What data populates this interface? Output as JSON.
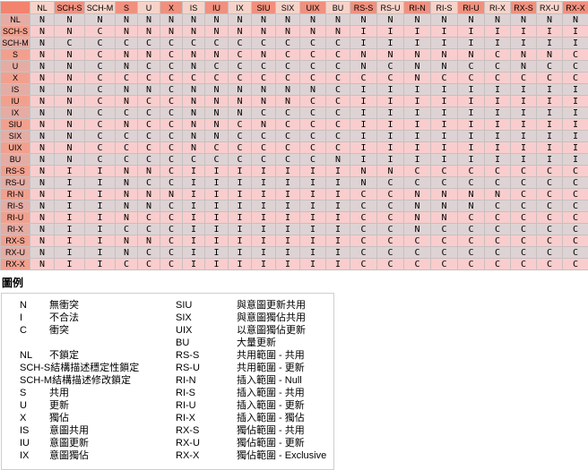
{
  "table": {
    "corner_label": "",
    "columns": [
      "NL",
      "SCH-S",
      "SCH-M",
      "S",
      "U",
      "X",
      "IS",
      "IU",
      "IX",
      "SIU",
      "SIX",
      "UIX",
      "BU",
      "RS-S",
      "RS-U",
      "RI-N",
      "RI-S",
      "RI-U",
      "RI-X",
      "RX-S",
      "RX-U",
      "RX-X"
    ],
    "rows": [
      {
        "label": "NL",
        "cells": [
          "N",
          "N",
          "N",
          "N",
          "N",
          "N",
          "N",
          "N",
          "N",
          "N",
          "N",
          "N",
          "N",
          "N",
          "N",
          "N",
          "N",
          "N",
          "N",
          "N",
          "N",
          "N"
        ]
      },
      {
        "label": "SCH-S",
        "cells": [
          "N",
          "N",
          "C",
          "N",
          "N",
          "N",
          "N",
          "N",
          "N",
          "N",
          "N",
          "N",
          "N",
          "I",
          "I",
          "I",
          "I",
          "I",
          "I",
          "I",
          "I",
          "I"
        ]
      },
      {
        "label": "SCH-M",
        "cells": [
          "N",
          "C",
          "C",
          "C",
          "C",
          "C",
          "C",
          "C",
          "C",
          "C",
          "C",
          "C",
          "C",
          "I",
          "I",
          "I",
          "I",
          "I",
          "I",
          "I",
          "I",
          "I"
        ]
      },
      {
        "label": "S",
        "cells": [
          "N",
          "N",
          "C",
          "N",
          "N",
          "C",
          "N",
          "N",
          "C",
          "N",
          "C",
          "C",
          "C",
          "N",
          "N",
          "N",
          "N",
          "N",
          "C",
          "N",
          "N",
          "C"
        ]
      },
      {
        "label": "U",
        "cells": [
          "N",
          "N",
          "C",
          "N",
          "C",
          "C",
          "N",
          "C",
          "C",
          "C",
          "C",
          "C",
          "C",
          "N",
          "C",
          "N",
          "N",
          "C",
          "C",
          "N",
          "C",
          "C"
        ]
      },
      {
        "label": "X",
        "cells": [
          "N",
          "N",
          "C",
          "C",
          "C",
          "C",
          "C",
          "C",
          "C",
          "C",
          "C",
          "C",
          "C",
          "C",
          "C",
          "N",
          "C",
          "C",
          "C",
          "C",
          "C",
          "C"
        ]
      },
      {
        "label": "IS",
        "cells": [
          "N",
          "N",
          "C",
          "N",
          "N",
          "C",
          "N",
          "N",
          "N",
          "N",
          "N",
          "N",
          "C",
          "I",
          "I",
          "I",
          "I",
          "I",
          "I",
          "I",
          "I",
          "I"
        ]
      },
      {
        "label": "IU",
        "cells": [
          "N",
          "N",
          "C",
          "N",
          "C",
          "C",
          "N",
          "N",
          "N",
          "N",
          "N",
          "C",
          "C",
          "I",
          "I",
          "I",
          "I",
          "I",
          "I",
          "I",
          "I",
          "I"
        ]
      },
      {
        "label": "IX",
        "cells": [
          "N",
          "N",
          "C",
          "C",
          "C",
          "C",
          "N",
          "N",
          "N",
          "C",
          "C",
          "C",
          "C",
          "I",
          "I",
          "I",
          "I",
          "I",
          "I",
          "I",
          "I",
          "I"
        ]
      },
      {
        "label": "SIU",
        "cells": [
          "N",
          "N",
          "C",
          "N",
          "C",
          "C",
          "N",
          "N",
          "C",
          "N",
          "C",
          "C",
          "C",
          "I",
          "I",
          "I",
          "I",
          "I",
          "I",
          "I",
          "I",
          "I"
        ]
      },
      {
        "label": "SIX",
        "cells": [
          "N",
          "N",
          "C",
          "C",
          "C",
          "C",
          "N",
          "N",
          "C",
          "C",
          "C",
          "C",
          "C",
          "I",
          "I",
          "I",
          "I",
          "I",
          "I",
          "I",
          "I",
          "I"
        ]
      },
      {
        "label": "UIX",
        "cells": [
          "N",
          "N",
          "C",
          "C",
          "C",
          "C",
          "N",
          "C",
          "C",
          "C",
          "C",
          "C",
          "C",
          "I",
          "I",
          "I",
          "I",
          "I",
          "I",
          "I",
          "I",
          "I"
        ]
      },
      {
        "label": "BU",
        "cells": [
          "N",
          "N",
          "C",
          "C",
          "C",
          "C",
          "C",
          "C",
          "C",
          "C",
          "C",
          "C",
          "N",
          "I",
          "I",
          "I",
          "I",
          "I",
          "I",
          "I",
          "I",
          "I"
        ]
      },
      {
        "label": "RS-S",
        "cells": [
          "N",
          "I",
          "I",
          "N",
          "N",
          "C",
          "I",
          "I",
          "I",
          "I",
          "I",
          "I",
          "I",
          "N",
          "N",
          "C",
          "C",
          "C",
          "C",
          "C",
          "C",
          "C"
        ]
      },
      {
        "label": "RS-U",
        "cells": [
          "N",
          "I",
          "I",
          "N",
          "C",
          "C",
          "I",
          "I",
          "I",
          "I",
          "I",
          "I",
          "I",
          "N",
          "C",
          "C",
          "C",
          "C",
          "C",
          "C",
          "C",
          "C"
        ]
      },
      {
        "label": "RI-N",
        "cells": [
          "N",
          "I",
          "I",
          "N",
          "N",
          "N",
          "I",
          "I",
          "I",
          "I",
          "I",
          "I",
          "I",
          "C",
          "C",
          "N",
          "N",
          "N",
          "N",
          "C",
          "C",
          "C"
        ]
      },
      {
        "label": "RI-S",
        "cells": [
          "N",
          "I",
          "I",
          "N",
          "N",
          "C",
          "I",
          "I",
          "I",
          "I",
          "I",
          "I",
          "I",
          "C",
          "C",
          "N",
          "N",
          "N",
          "C",
          "C",
          "C",
          "C"
        ]
      },
      {
        "label": "RI-U",
        "cells": [
          "N",
          "I",
          "I",
          "N",
          "C",
          "C",
          "I",
          "I",
          "I",
          "I",
          "I",
          "I",
          "I",
          "C",
          "C",
          "N",
          "N",
          "C",
          "C",
          "C",
          "C",
          "C"
        ]
      },
      {
        "label": "RI-X",
        "cells": [
          "N",
          "I",
          "I",
          "C",
          "C",
          "C",
          "I",
          "I",
          "I",
          "I",
          "I",
          "I",
          "I",
          "C",
          "C",
          "N",
          "C",
          "C",
          "C",
          "C",
          "C",
          "C"
        ]
      },
      {
        "label": "RX-S",
        "cells": [
          "N",
          "I",
          "I",
          "N",
          "N",
          "C",
          "I",
          "I",
          "I",
          "I",
          "I",
          "I",
          "I",
          "C",
          "C",
          "C",
          "C",
          "C",
          "C",
          "C",
          "C",
          "C"
        ]
      },
      {
        "label": "RX-U",
        "cells": [
          "N",
          "I",
          "I",
          "N",
          "C",
          "C",
          "I",
          "I",
          "I",
          "I",
          "I",
          "I",
          "I",
          "C",
          "C",
          "C",
          "C",
          "C",
          "C",
          "C",
          "C",
          "C"
        ]
      },
      {
        "label": "RX-X",
        "cells": [
          "N",
          "I",
          "I",
          "C",
          "C",
          "C",
          "I",
          "I",
          "I",
          "I",
          "I",
          "I",
          "I",
          "C",
          "C",
          "C",
          "C",
          "C",
          "C",
          "C",
          "C",
          "C"
        ]
      }
    ]
  },
  "legend": {
    "title": "圖例",
    "left": [
      {
        "code": "N",
        "desc": "無衝突"
      },
      {
        "code": "I",
        "desc": "不合法"
      },
      {
        "code": "C",
        "desc": "衝突"
      },
      {
        "code": "",
        "desc": ""
      },
      {
        "code": "NL",
        "desc": "不鎖定"
      },
      {
        "code": "SCH-S",
        "desc": "結構描述穩定性鎖定"
      },
      {
        "code": "SCH-M",
        "desc": "結構描述修改鎖定"
      },
      {
        "code": "S",
        "desc": "共用"
      },
      {
        "code": "U",
        "desc": "更新"
      },
      {
        "code": "X",
        "desc": "獨佔"
      },
      {
        "code": "IS",
        "desc": "意圖共用"
      },
      {
        "code": "IU",
        "desc": "意圖更新"
      },
      {
        "code": "IX",
        "desc": "意圖獨佔"
      }
    ],
    "right": [
      {
        "code": "SIU",
        "desc": "與意圖更新共用"
      },
      {
        "code": "SIX",
        "desc": "與意圖獨佔共用"
      },
      {
        "code": "UIX",
        "desc": "以意圖獨佔更新"
      },
      {
        "code": "BU",
        "desc": "大量更新"
      },
      {
        "code": "RS-S",
        "desc": "共用範圍 - 共用"
      },
      {
        "code": "RS-U",
        "desc": "共用範圍 - 更新"
      },
      {
        "code": "RI-N",
        "desc": "插入範圍 - Null"
      },
      {
        "code": "RI-S",
        "desc": "插入範圍 - 共用"
      },
      {
        "code": "RI-U",
        "desc": "插入範圍 - 更新"
      },
      {
        "code": "RI-X",
        "desc": "插入範圍 - 獨佔"
      },
      {
        "code": "RX-S",
        "desc": "獨佔範圍 - 共用"
      },
      {
        "code": "RX-U",
        "desc": "獨佔範圍 - 更新"
      },
      {
        "code": "RX-X",
        "desc": "獨佔範圍 - Exclusive"
      }
    ]
  },
  "colors": {
    "corner": "#f2836e",
    "header_dark": "#f0907e",
    "header_light": "#f6d3c9",
    "row_header_odd": "#e5aca4",
    "row_header_even": "#f2a08e",
    "row_odd": "#ded3d4",
    "row_even": "#f9cdcd",
    "grid": "#c9bfbf",
    "legend_border": "#d4cccc",
    "text": "#000000"
  }
}
